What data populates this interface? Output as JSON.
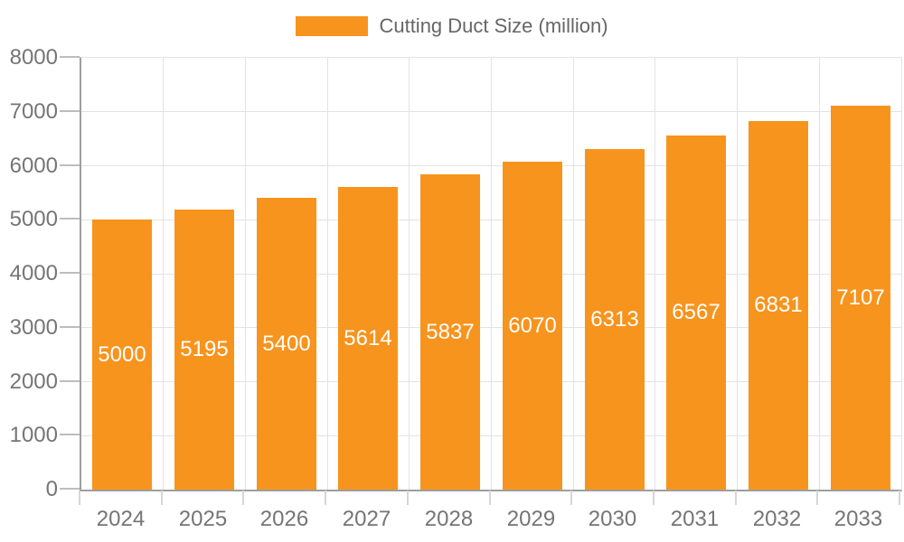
{
  "legend": {
    "label": "Cutting Duct Size (million)"
  },
  "colors": {
    "bar": "#F7941E",
    "axis_line": "#9e9e9e",
    "gridline": "#e3e3e3",
    "y_tick": "#bdbdbd",
    "x_tick": "#d6d6d6",
    "axis_text": "#757575",
    "legend_text": "#666666",
    "bar_label_text": "#ffffff"
  },
  "chart_data": {
    "type": "bar",
    "title": "",
    "legend_entries": [
      "Cutting Duct Size (million)"
    ],
    "legend_position": "top-center",
    "categories": [
      "2024",
      "2025",
      "2026",
      "2027",
      "2028",
      "2029",
      "2030",
      "2031",
      "2032",
      "2033"
    ],
    "values": [
      5000,
      5195,
      5400,
      5614,
      5837,
      6070,
      6313,
      6567,
      6831,
      7107
    ],
    "bar_labels_visible": true,
    "xlabel": "",
    "ylabel": "",
    "ylim": [
      0,
      8000
    ],
    "yticks": [
      0,
      1000,
      2000,
      3000,
      4000,
      5000,
      6000,
      7000,
      8000
    ],
    "grid": true,
    "grid_offset_between_categories": true
  }
}
